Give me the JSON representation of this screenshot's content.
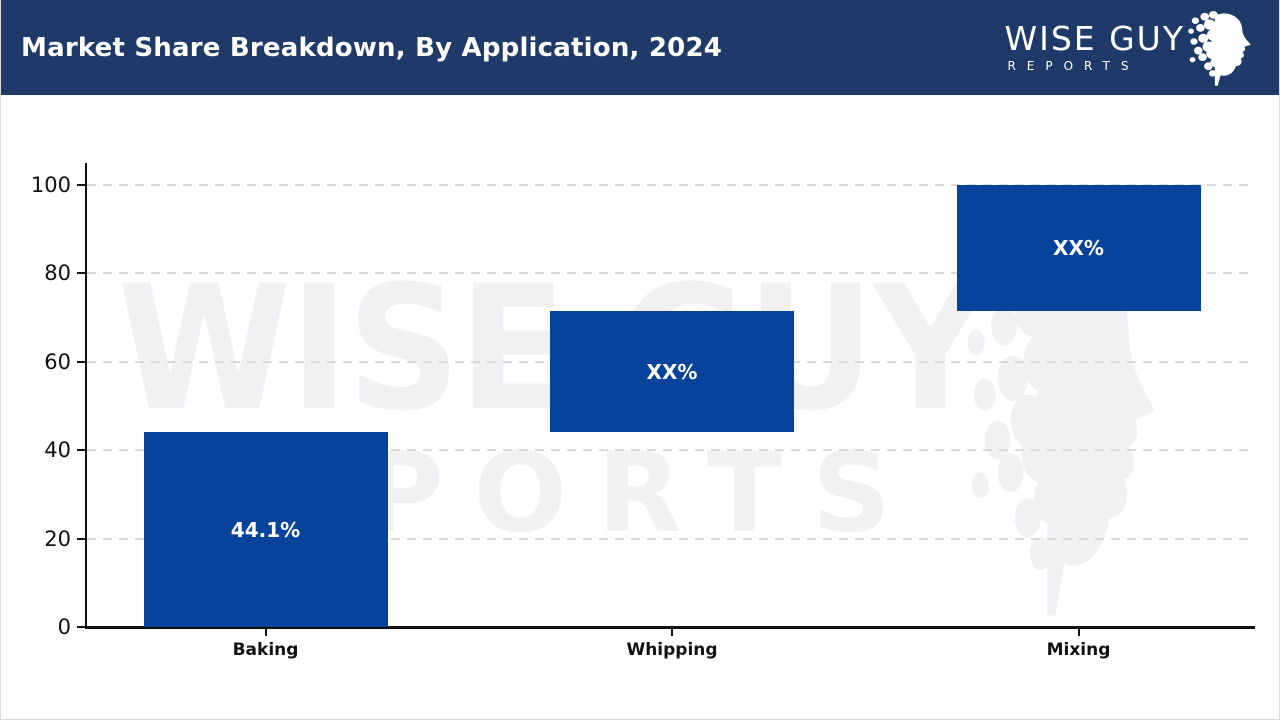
{
  "header": {
    "title": "Market Share Breakdown, By Application, 2024",
    "logo": {
      "name": "WISE GUY",
      "sub": "REPORTS"
    }
  },
  "watermark": {
    "name": "WISE GUY",
    "sub": "REPORTS"
  },
  "chart_data": {
    "type": "bar",
    "subtype": "waterfall",
    "title": "Market Share Breakdown, By Application, 2024",
    "categories": [
      "Baking",
      "Whipping",
      "Mixing"
    ],
    "segments": [
      {
        "category": "Baking",
        "start": 0,
        "end": 44.1,
        "label": "44.1%"
      },
      {
        "category": "Whipping",
        "start": 44.1,
        "end": 71.5,
        "label": "XX%"
      },
      {
        "category": "Mixing",
        "start": 71.5,
        "end": 100,
        "label": "XX%"
      }
    ],
    "ylim": [
      0,
      100
    ],
    "yticks": [
      0,
      20,
      40,
      60,
      80,
      100
    ],
    "xlabel": "",
    "ylabel": "",
    "grid": "horizontal-dashed",
    "legend": false,
    "bar_color": "#08439b",
    "bar_label_color": "#ffffff"
  },
  "colors": {
    "header_bg": "#1f3a68",
    "bar": "#08439b",
    "gridline": "#dadada",
    "axis": "#111111",
    "watermark": "#f1f1f3",
    "title_text": "#ffffff"
  }
}
